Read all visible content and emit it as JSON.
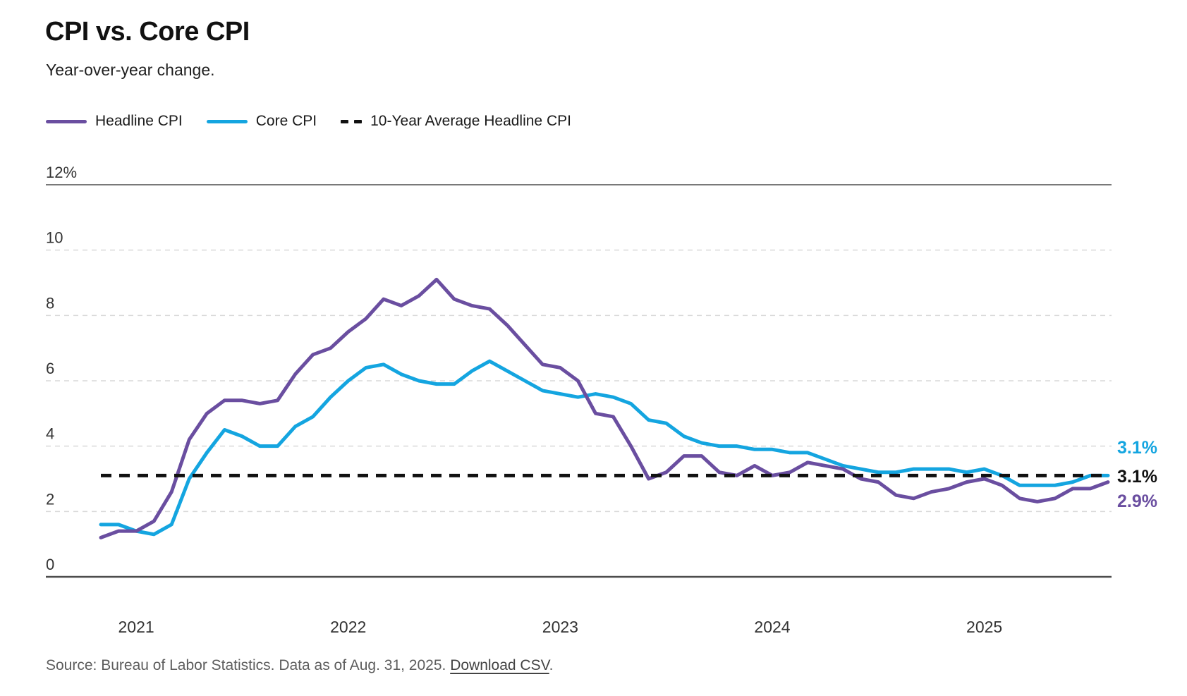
{
  "header": {
    "title": "CPI vs. Core CPI",
    "subtitle": "Year-over-year change."
  },
  "legend": {
    "items": [
      {
        "label": "Headline CPI",
        "color": "#6A4EA0",
        "style": "solid"
      },
      {
        "label": "Core CPI",
        "color": "#14A5E0",
        "style": "solid"
      },
      {
        "label": "10-Year Average Headline CPI",
        "color": "#111111",
        "style": "dashed"
      }
    ]
  },
  "chart_data": {
    "type": "line",
    "title": "CPI vs. Core CPI",
    "subtitle": "Year-over-year change.",
    "x_unit": "month",
    "x_start": "2020-11",
    "x_end": "2025-08",
    "x_tick_labels": [
      "2021",
      "2022",
      "2023",
      "2024",
      "2025"
    ],
    "x_tick_month_index": [
      2,
      14,
      26,
      38,
      50
    ],
    "ylim": [
      0,
      12
    ],
    "y_ticks": [
      {
        "value": 12,
        "label": "12%"
      },
      {
        "value": 10,
        "label": "10"
      },
      {
        "value": 8,
        "label": "8"
      },
      {
        "value": 6,
        "label": "6"
      },
      {
        "value": 4,
        "label": "4"
      },
      {
        "value": 2,
        "label": "2"
      },
      {
        "value": 0,
        "label": "0"
      }
    ],
    "grid": "horizontal-dashed",
    "legend_position": "top-left",
    "series": [
      {
        "name": "Headline CPI",
        "color": "#6A4EA0",
        "style": "solid",
        "values": [
          1.2,
          1.4,
          1.4,
          1.7,
          2.6,
          4.2,
          5.0,
          5.4,
          5.4,
          5.3,
          5.4,
          6.2,
          6.8,
          7.0,
          7.5,
          7.9,
          8.5,
          8.3,
          8.6,
          9.1,
          8.5,
          8.3,
          8.2,
          7.7,
          7.1,
          6.5,
          6.4,
          6.0,
          5.0,
          4.9,
          4.0,
          3.0,
          3.2,
          3.7,
          3.7,
          3.2,
          3.1,
          3.4,
          3.1,
          3.2,
          3.5,
          3.4,
          3.3,
          3.0,
          2.9,
          2.5,
          2.4,
          2.6,
          2.7,
          2.9,
          3.0,
          2.8,
          2.4,
          2.3,
          2.4,
          2.7,
          2.7,
          2.9
        ]
      },
      {
        "name": "Core CPI",
        "color": "#14A5E0",
        "style": "solid",
        "values": [
          1.6,
          1.6,
          1.4,
          1.3,
          1.6,
          3.0,
          3.8,
          4.5,
          4.3,
          4.0,
          4.0,
          4.6,
          4.9,
          5.5,
          6.0,
          6.4,
          6.5,
          6.2,
          6.0,
          5.9,
          5.9,
          6.3,
          6.6,
          6.3,
          6.0,
          5.7,
          5.6,
          5.5,
          5.6,
          5.5,
          5.3,
          4.8,
          4.7,
          4.3,
          4.1,
          4.0,
          4.0,
          3.9,
          3.9,
          3.8,
          3.8,
          3.6,
          3.4,
          3.3,
          3.2,
          3.2,
          3.3,
          3.3,
          3.3,
          3.2,
          3.3,
          3.1,
          2.8,
          2.8,
          2.8,
          2.9,
          3.1,
          3.1
        ]
      },
      {
        "name": "10-Year Average Headline CPI",
        "color": "#111111",
        "style": "dashed",
        "constant": 3.1
      }
    ],
    "end_labels": [
      {
        "text": "3.1%",
        "color": "#14A5E0",
        "series": "Core CPI"
      },
      {
        "text": "3.1%",
        "color": "#111111",
        "series": "10-Year Average Headline CPI"
      },
      {
        "text": "2.9%",
        "color": "#6A4EA0",
        "series": "Headline CPI"
      }
    ]
  },
  "footer": {
    "source_prefix": "Source: Bureau of Labor Statistics. Data as of Aug. 31, 2025. ",
    "download_link": "Download CSV",
    "suffix": "."
  }
}
